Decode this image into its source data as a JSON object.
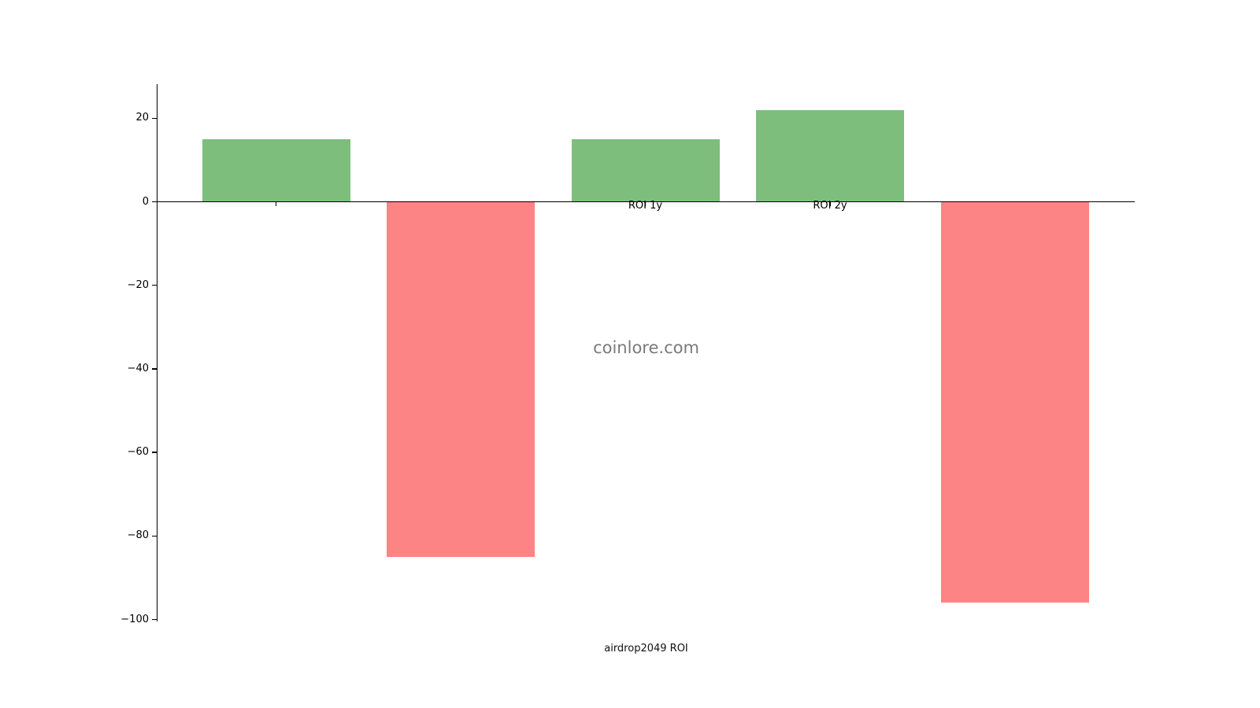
{
  "watermark": {
    "text": "coinlore.com",
    "color": "#7a7a7a"
  },
  "chart_data": {
    "type": "bar",
    "title": "airdrop2049 ROI",
    "title_position": "bottom",
    "xlabel": "",
    "ylabel": "",
    "categories": [
      "",
      "",
      "ROI 1y",
      "ROI 2y",
      ""
    ],
    "values": [
      15,
      -85,
      15,
      22,
      -96
    ],
    "yticks": [
      20,
      0,
      -20,
      -40,
      -60,
      -80,
      -100
    ],
    "ylim": [
      -100.5,
      28.2
    ],
    "grid": false,
    "legend": null,
    "visible_x_tick_indices": [
      0,
      2,
      3
    ],
    "labeled_x_tick_indices": [
      2,
      3
    ],
    "colors": {
      "positive": "#7dbe7d",
      "negative": "#fd8484",
      "axis": "#000000",
      "tick_label": "#000000",
      "watermark": "#7a7a7a",
      "title": "#111111"
    }
  }
}
